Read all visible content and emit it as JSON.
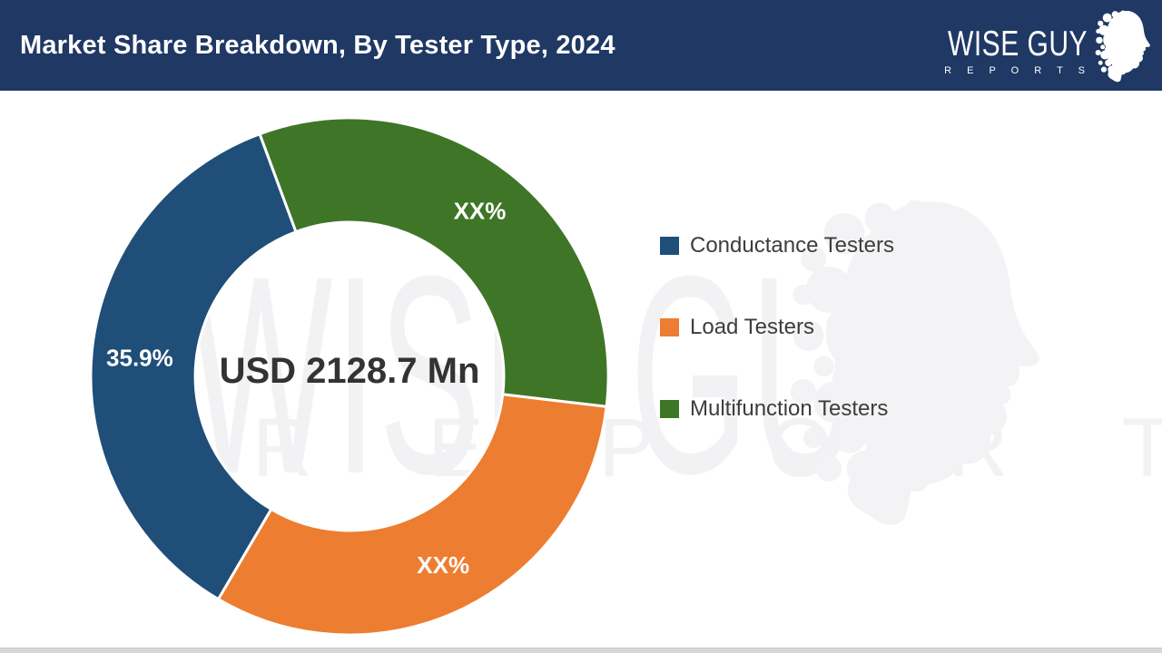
{
  "header": {
    "title": "Market Share Breakdown, By Tester Type, 2024",
    "logo": {
      "name": "WISE GUY",
      "subtitle": "R E P O R T S"
    }
  },
  "watermark": {
    "line1": "WISE GUY",
    "line2": "R E P O R T S"
  },
  "chart_data": {
    "type": "pie",
    "variant": "donut",
    "title": "Market Share Breakdown, By Tester Type, 2024",
    "center_label": "USD 2128.7 Mn",
    "legend_position": "right",
    "start_angle_deg": 110.3,
    "segments": [
      {
        "name": "Conductance Testers",
        "slice_label": "35.9%",
        "estimated_pct": 35.9,
        "color": "#1f4e79"
      },
      {
        "name": "Load Testers",
        "slice_label": "XX%",
        "estimated_pct": 31.6,
        "color": "#ed7d31"
      },
      {
        "name": "Multifunction Testers",
        "slice_label": "XX%",
        "estimated_pct": 32.5,
        "color": "#3f7527"
      }
    ]
  },
  "colors": {
    "header_bg": "#1f3864",
    "watermark": "#f2f2f4",
    "footer_bar": "#d7d7db",
    "center_text": "#333333",
    "legend_text": "#3d3d3d"
  }
}
